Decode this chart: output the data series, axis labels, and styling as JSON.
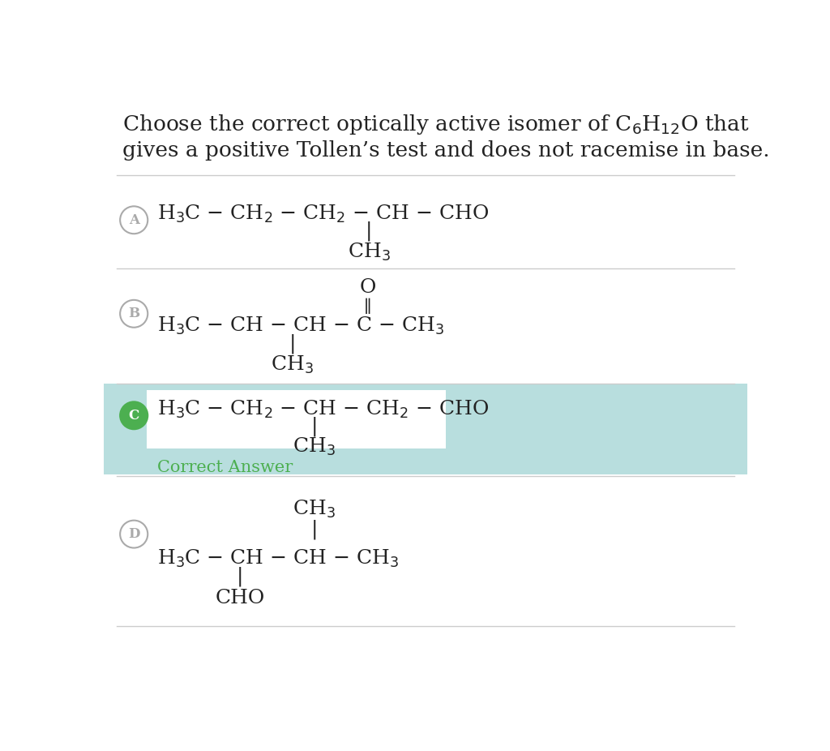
{
  "background_color": "#ffffff",
  "option_bg_highlight": "#b8dede",
  "correct_answer_color": "#4caf50",
  "circle_color_filled": "#4caf50",
  "circle_color_empty": "#aaaaaa",
  "text_color": "#222222",
  "divider_color": "#cccccc",
  "font_size_title": 19,
  "font_size_formula": 18,
  "font_size_correct": 15,
  "title_line1": "Choose the correct optically active isomer of C",
  "title_line1_sub6": "6",
  "title_line1_H": "H",
  "title_line1_sub12": "12",
  "title_line1_Othat": "O that",
  "title_line2": "gives a positive Tollen’s test and does not racemise in base."
}
